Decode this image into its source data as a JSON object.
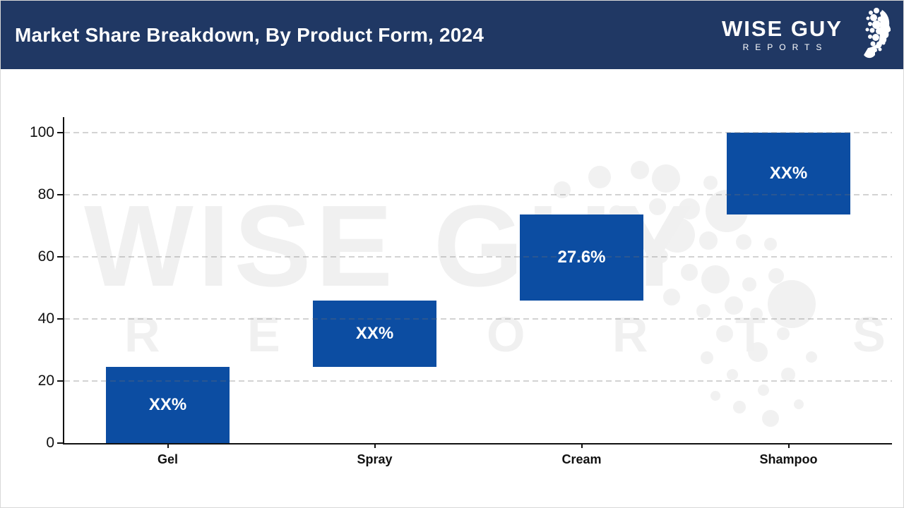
{
  "header": {
    "title": "Market Share Breakdown, By Product Form, 2024",
    "background_color": "#203864",
    "logo": {
      "line1": "WISE GUY",
      "line2": "REPORTS"
    }
  },
  "watermark": {
    "line1": "WISE GUY",
    "line2": "R E P O R T S"
  },
  "chart_data": {
    "type": "bar",
    "subtype": "floating-waterfall",
    "title": "Market Share Breakdown, By Product Form, 2024",
    "categories": [
      "Gel",
      "Spray",
      "Cream",
      "Shampoo"
    ],
    "bars": [
      {
        "category": "Gel",
        "start": 0,
        "end": 24.5,
        "label": "XX%"
      },
      {
        "category": "Spray",
        "start": 24.5,
        "end": 46,
        "label": "XX%"
      },
      {
        "category": "Cream",
        "start": 46,
        "end": 73.6,
        "label": "27.6%"
      },
      {
        "category": "Shampoo",
        "start": 73.6,
        "end": 100,
        "label": "XX%"
      }
    ],
    "xlabel": "",
    "ylabel": "",
    "yticks": [
      0,
      20,
      40,
      60,
      80,
      100
    ],
    "ylim": [
      0,
      105
    ],
    "grid": "dashed-horizontal",
    "legend": "none",
    "bar_color": "#0c4da2",
    "bar_label_color": "#ffffff",
    "axis_color": "#111111"
  }
}
